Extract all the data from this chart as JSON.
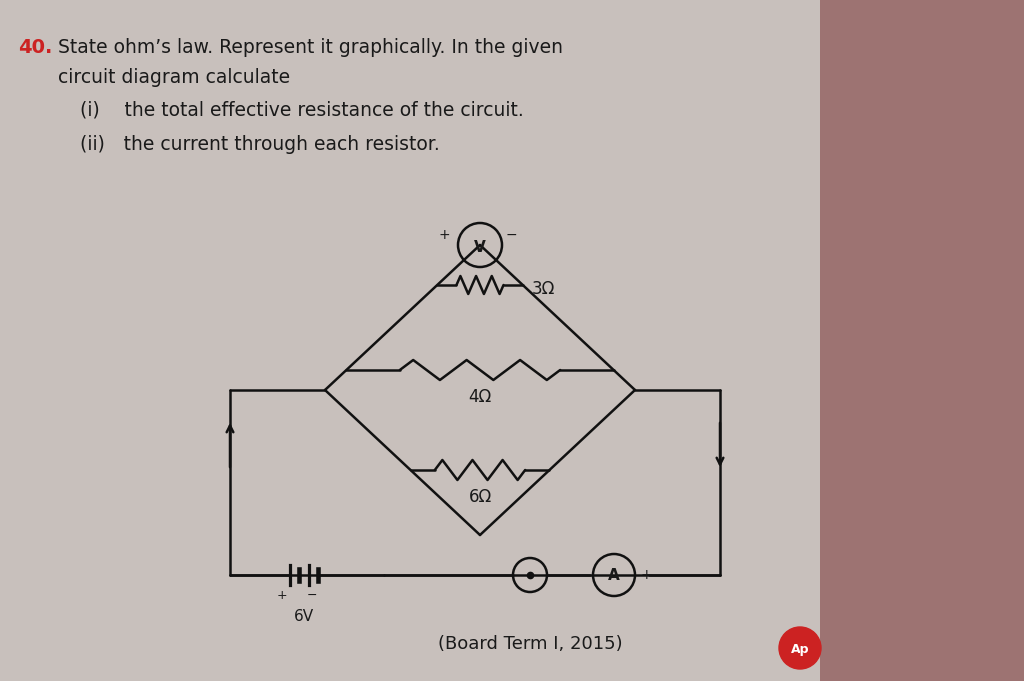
{
  "bg_color": "#c8c0bc",
  "text_color": "#1a1a1a",
  "title_number_color": "#cc2222",
  "line_color": "#111111",
  "resistor_3": "3Ω",
  "resistor_4": "4Ω",
  "resistor_6": "6Ω",
  "battery_label": "6V",
  "voltmeter_label": "V",
  "ammeter_label": "A",
  "board_text": "(Board Term I, 2015)",
  "title_line1": "State ohm’s law. Represent it graphically. In the given",
  "title_line2": "circuit diagram calculate",
  "sub_i": "(i)  the total effective resistance of the circuit.",
  "sub_ii": "(ii) the current through each resistor."
}
